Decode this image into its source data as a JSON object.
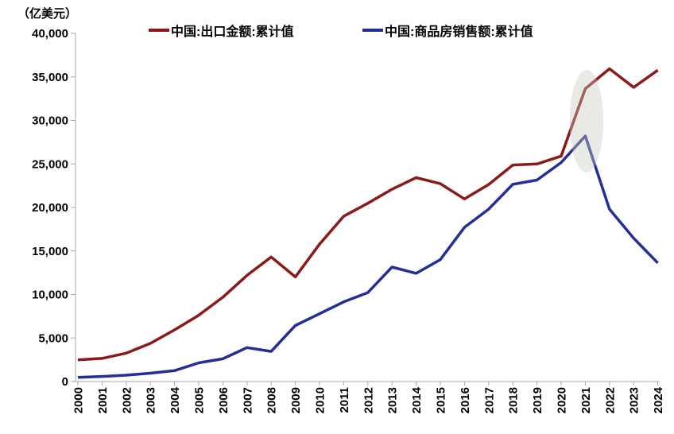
{
  "title": "（亿美元）",
  "chart_data": {
    "type": "line",
    "unit_label": "（亿美元）",
    "x": [
      2000,
      2001,
      2002,
      2003,
      2004,
      2005,
      2006,
      2007,
      2008,
      2009,
      2010,
      2011,
      2012,
      2013,
      2014,
      2015,
      2016,
      2017,
      2018,
      2019,
      2020,
      2021,
      2022,
      2023,
      2024
    ],
    "series": [
      {
        "name": "中国:出口金额:累计值",
        "color": "#8B1A1B",
        "values": [
          2492,
          2661,
          3256,
          4382,
          5933,
          7620,
          9690,
          12205,
          14307,
          12016,
          15778,
          18984,
          20487,
          22090,
          23423,
          22735,
          20976,
          22635,
          24874,
          24995,
          25900,
          33640,
          35936,
          33800,
          35772
        ]
      },
      {
        "name": "中国:商品房销售额:累计值",
        "color": "#232F96",
        "values": [
          475,
          587,
          729,
          961,
          1253,
          2146,
          2613,
          3895,
          3464,
          6441,
          7788,
          9152,
          10215,
          13155,
          12425,
          14010,
          17715,
          19808,
          22655,
          23148,
          25161,
          28206,
          19809,
          16472,
          13627
        ]
      }
    ],
    "ylim": [
      0,
      40000
    ],
    "ytick_step": 5000,
    "ytick_labels": [
      "0",
      "5,000",
      "10,000",
      "15,000",
      "20,000",
      "25,000",
      "30,000",
      "35,000",
      "40,000"
    ],
    "grid": false,
    "legend_position": "top",
    "axis_color": "#A6A6A6",
    "text_color": "#000000",
    "annotation": {
      "shape": "ellipse-highlight",
      "x_year": 2021.05,
      "y_value": 29900,
      "rx_years": 0.7,
      "ry_value": 5900,
      "fill": "#C8C8BE",
      "opacity": 0.4
    }
  }
}
